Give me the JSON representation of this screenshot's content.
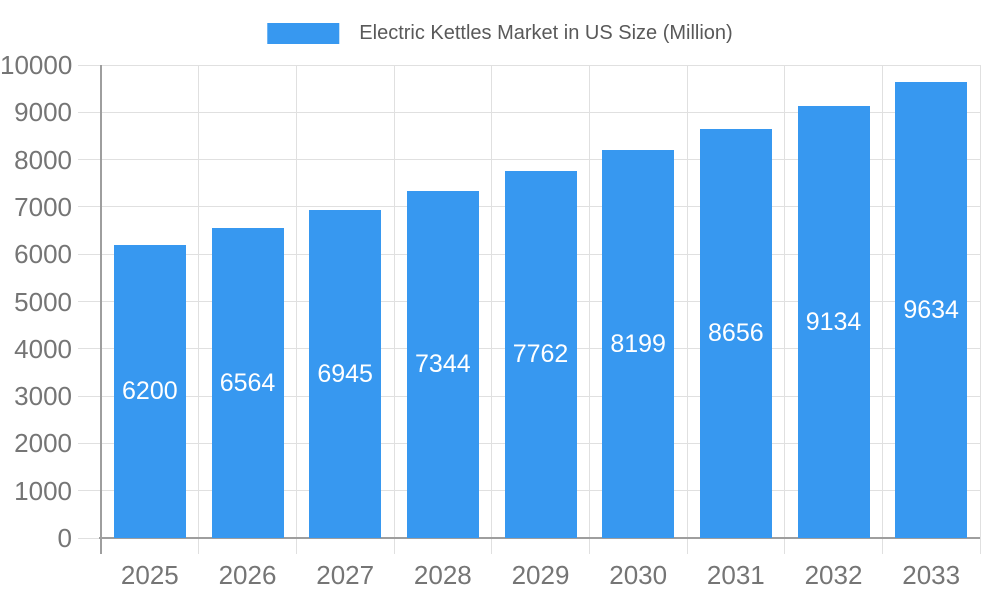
{
  "chart_data": {
    "type": "bar",
    "title": "Electric Kettles Market in US Size (Million)",
    "legend": "Electric Kettles Market in US Size (Million)",
    "legend_position": "top-center",
    "categories": [
      "2025",
      "2026",
      "2027",
      "2028",
      "2029",
      "2030",
      "2031",
      "2032",
      "2033"
    ],
    "values": [
      6200,
      6564,
      6945,
      7344,
      7762,
      8199,
      8656,
      9134,
      9634
    ],
    "xlabel": "",
    "ylabel": "",
    "ylim": [
      0,
      10000
    ],
    "ytick_step": 1000,
    "yticks": [
      0,
      1000,
      2000,
      3000,
      4000,
      5000,
      6000,
      7000,
      8000,
      9000,
      10000
    ],
    "grid": true,
    "colors": {
      "bar": "#3798F0",
      "bar_label": "#ffffff",
      "axis_line": "#9e9e9e",
      "gridline": "#e0e0e0",
      "tick_label": "#757575",
      "legend_text": "#595959",
      "background": "#ffffff"
    }
  }
}
